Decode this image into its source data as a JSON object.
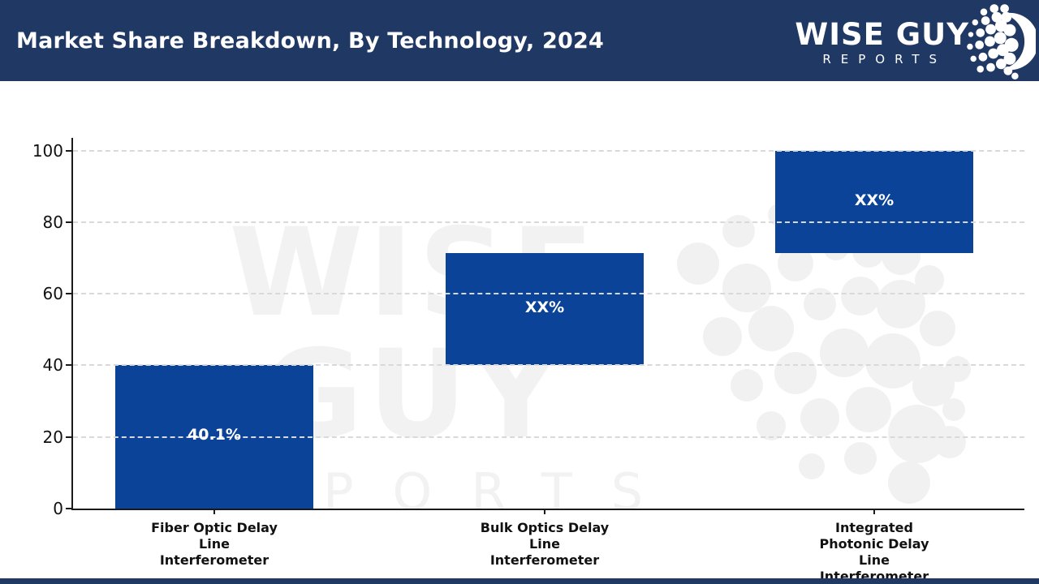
{
  "header": {
    "title": "Market Share Breakdown, By Technology, 2024",
    "brand": {
      "line1": "WISE GUY",
      "line2": "REPORTS"
    }
  },
  "watermark": {
    "line1": "WISE GUY",
    "line2": "REPORTS"
  },
  "colors": {
    "header_bg": "#1f3864",
    "bar": "#0b4398",
    "grid": "#d9d9d9",
    "axis": "#1a1a1a",
    "bar_label": "#ffffff",
    "watermark": "#f2f2f2"
  },
  "chart_data": {
    "type": "bar",
    "subtype": "stacked-waterfall",
    "title": "Market Share Breakdown, By Technology, 2024",
    "categories": [
      [
        "Fiber Optic Delay",
        "Line",
        "Interferometer"
      ],
      [
        "Bulk Optics Delay",
        "Line",
        "Interferometer"
      ],
      [
        "Integrated",
        "Photonic Delay",
        "Line",
        "Interferometer"
      ]
    ],
    "bars": [
      {
        "category": "Fiber Optic Delay Line Interferometer",
        "start": 0,
        "end": 40.1,
        "label": "40.1%"
      },
      {
        "category": "Bulk Optics Delay Line Interferometer",
        "start": 40.1,
        "end": 71.4,
        "label": "XX%"
      },
      {
        "category": "Integrated Photonic Delay Line Interferometer",
        "start": 71.4,
        "end": 100,
        "label": "XX%"
      }
    ],
    "ylim": [
      0,
      100
    ],
    "yticks": [
      0,
      20,
      40,
      60,
      80,
      100
    ],
    "grid": "horizontal-dashed",
    "legend": false,
    "xlabel": "",
    "ylabel": ""
  }
}
